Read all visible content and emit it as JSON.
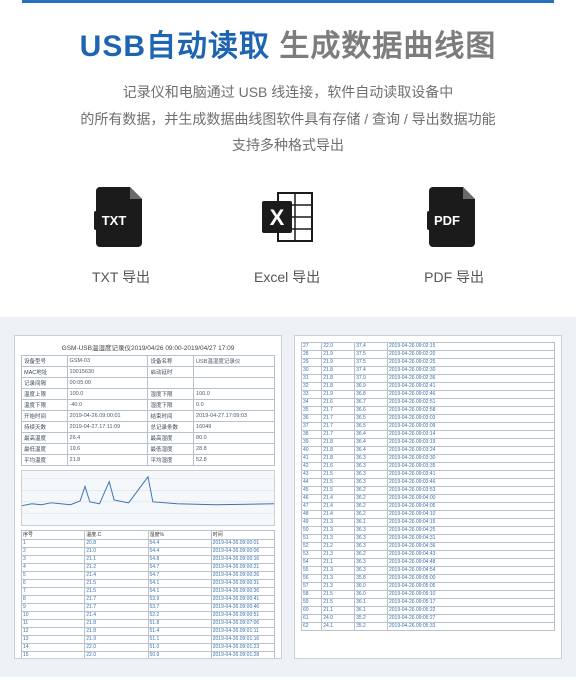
{
  "hero": {
    "title_blue": "USB自动读取",
    "title_gray": "生成数据曲线图",
    "desc_l1": "记录仪和电脑通过 USB 线连接，软件自动读取设备中",
    "desc_l2": "的所有数据，并生成数据曲线图软件具有存储 / 查询 / 导出数据功能",
    "desc_l3": "支持多种格式导出"
  },
  "formats": {
    "txt": {
      "label": "TXT 导出",
      "badge": "TXT"
    },
    "excel": {
      "label": "Excel 导出",
      "badge": "X"
    },
    "pdf": {
      "label": "PDF 导出",
      "badge": "PDF"
    }
  },
  "report": {
    "title": "GSM-USB温湿度记录仪2019/04/26 09:00-2019/04/27 17:09",
    "info": [
      [
        "设备型号",
        "GSM-03",
        "设备名称",
        "USB温湿度记录仪"
      ],
      [
        "MAC地址",
        "10015630",
        "启动延时",
        ""
      ],
      [
        "记录间隔",
        "00:05:00",
        "",
        ""
      ],
      [
        "温度上限",
        "100.0",
        "湿度下限",
        "100.0"
      ],
      [
        "温度下限",
        "-40.0",
        "湿度下限",
        "0.0"
      ],
      [
        "开始时间",
        "2019-04-26.09:00:01",
        "结束时间",
        "2019-04-27.17:09:03"
      ],
      [
        "持续天数",
        "2019-04-27.17:11:09",
        "总记录条数",
        "16049"
      ],
      [
        "最高温度",
        "26.4",
        "最高湿度",
        "80.0"
      ],
      [
        "最低温度",
        "19.6",
        "最低湿度",
        "28.8"
      ],
      [
        "平均温度",
        "21.8",
        "平均湿度",
        "52.8"
      ]
    ],
    "chart": {
      "points": [
        0,
        20,
        10,
        22,
        20,
        21,
        30,
        23,
        40,
        22,
        50,
        21,
        60,
        25,
        65,
        40,
        70,
        24,
        80,
        22,
        90,
        45,
        95,
        26,
        110,
        23,
        130,
        50,
        135,
        24,
        160,
        22,
        200,
        21,
        260,
        22
      ],
      "stroke": "#3a72ad",
      "grid": "#d2dbe4",
      "bg": "#f5f8fb"
    },
    "rows_header": [
      "序号",
      "温度.C",
      "湿度%",
      "时间"
    ],
    "rows_left": [
      [
        "1",
        "20.8",
        "54.4",
        "2019-04-26.09:00:01"
      ],
      [
        "2",
        "21.0",
        "54.4",
        "2019-04-26.09:00:06"
      ],
      [
        "3",
        "21.1",
        "54.8",
        "2019-04-26.09:00:16"
      ],
      [
        "4",
        "21.2",
        "54.7",
        "2019-04-26.09:00:21"
      ],
      [
        "5",
        "21.4",
        "54.7",
        "2019-04-26.09:00:26"
      ],
      [
        "6",
        "21.5",
        "54.1",
        "2019-04-26.09:00:31"
      ],
      [
        "7",
        "21.5",
        "54.1",
        "2019-04-26.09:00:36"
      ],
      [
        "8",
        "21.7",
        "53.9",
        "2019-04-26.09:00:41"
      ],
      [
        "9",
        "21.7",
        "53.7",
        "2019-04-26.09:00:46"
      ],
      [
        "10",
        "21.4",
        "52.2",
        "2019-04-26.09:00:51"
      ],
      [
        "11",
        "21.8",
        "51.8",
        "2019-04-26.09:07:06"
      ],
      [
        "12",
        "21.8",
        "51.4",
        "2019-04-26.09:01:11"
      ],
      [
        "13",
        "21.9",
        "51.1",
        "2019-04-26.09:01:16"
      ],
      [
        "14",
        "22.0",
        "51.0",
        "2019-04-26.09:01:23"
      ],
      [
        "15",
        "22.0",
        "50.9",
        "2019-04-26.09:01:28"
      ]
    ],
    "rows_right": [
      [
        "27",
        "22.0",
        "37.4",
        "2019-04-26.09:02:15"
      ],
      [
        "28",
        "21.9",
        "37.5",
        "2019-04-26.09:02:20"
      ],
      [
        "29",
        "21.9",
        "37.5",
        "2019-04-26.09:02:25"
      ],
      [
        "30",
        "21.8",
        "37.4",
        "2019-04-26.09:02:30"
      ],
      [
        "31",
        "21.8",
        "37.0",
        "2019-04-26.09:02:36"
      ],
      [
        "32",
        "21.8",
        "36.9",
        "2019-04-26.09:02:41"
      ],
      [
        "33",
        "21.9",
        "36.8",
        "2019-04-26.09:02:46"
      ],
      [
        "34",
        "21.6",
        "36.7",
        "2019-04-26.09:02:51"
      ],
      [
        "35",
        "21.7",
        "36.6",
        "2019-04-26.09:02:58"
      ],
      [
        "36",
        "21.7",
        "36.5",
        "2019-04-26.09:03:03"
      ],
      [
        "37",
        "21.7",
        "36.5",
        "2019-04-26.09:03:09"
      ],
      [
        "38",
        "21.7",
        "36.4",
        "2019-04-26.09:03:14"
      ],
      [
        "39",
        "21.8",
        "36.4",
        "2019-04-26.09:03:19"
      ],
      [
        "40",
        "21.8",
        "36.4",
        "2019-04-26.09:03:24"
      ],
      [
        "41",
        "21.8",
        "36.3",
        "2019-04-26.09:03:30"
      ],
      [
        "42",
        "21.6",
        "36.3",
        "2019-04-26.09:03:35"
      ],
      [
        "43",
        "21.5",
        "36.3",
        "2019-04-26.09:03:41"
      ],
      [
        "44",
        "21.5",
        "36.3",
        "2019-04-26.09:03:46"
      ],
      [
        "45",
        "21.5",
        "36.2",
        "2019-04-26.09:03:53"
      ],
      [
        "46",
        "21.4",
        "36.2",
        "2019-04-26.09:04:00"
      ],
      [
        "47",
        "21.4",
        "36.2",
        "2019-04-26.09:04:05"
      ],
      [
        "48",
        "21.4",
        "36.2",
        "2019-04-26.09:04:10"
      ],
      [
        "49",
        "21.3",
        "36.1",
        "2019-04-26.09:04:15"
      ],
      [
        "50",
        "21.3",
        "36.3",
        "2019-04-26.09:04:25"
      ],
      [
        "51",
        "21.3",
        "36.3",
        "2019-04-26.09:04:31"
      ],
      [
        "52",
        "21.2",
        "36.3",
        "2019-04-26.09:04:36"
      ],
      [
        "53",
        "21.3",
        "36.2",
        "2019-04-26.09:04:43"
      ],
      [
        "54",
        "21.1",
        "36.3",
        "2019-04-26.09:04:48"
      ],
      [
        "55",
        "21.3",
        "36.3",
        "2019-04-26.09:04:54"
      ],
      [
        "56",
        "21.3",
        "35.8",
        "2019-04-26.09:05:00"
      ],
      [
        "57",
        "21.3",
        "36.0",
        "2019-04-26.09:05:05"
      ],
      [
        "58",
        "21.5",
        "36.0",
        "2019-04-26.09:05:10"
      ],
      [
        "59",
        "21.5",
        "36.1",
        "2019-04-26.09:05:17"
      ],
      [
        "60",
        "21.1",
        "36.1",
        "2019-04-26.09:05:22"
      ],
      [
        "61",
        "24.0",
        "35.2",
        "2019-04-26.09:05:27"
      ],
      [
        "62",
        "24.1",
        "35.2",
        "2019-04-26.09:05:33"
      ]
    ]
  },
  "colors": {
    "accent": "#1d64b3",
    "text_gray": "#7d7d7d",
    "desc_gray": "#6f6f6f",
    "panel_border": "#c9d0d6",
    "link_blue": "#3a72ad"
  }
}
